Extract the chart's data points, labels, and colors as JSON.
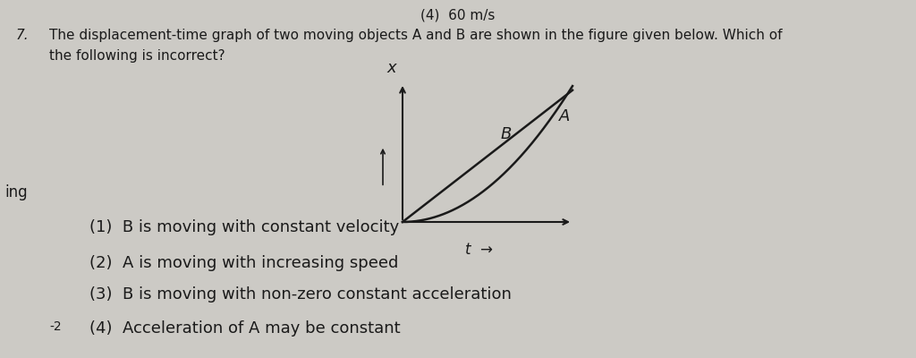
{
  "bg_color": "#cccac5",
  "question_text_line1": "The displacement-time graph of two moving objects A and B are shown in the figure given below. Which of",
  "question_text_line2": "the following is incorrect?",
  "question_number": "7.",
  "prev_answer": "(4)  60 m/s",
  "options_clean": [
    "(1)  B is moving with constant velocity",
    "(2)  A is moving with increasing speed",
    "(3)  B is moving with non-zero constant acceleration",
    "(4)  Acceleration of A may be constant"
  ],
  "side_text": "ing",
  "prefix_last": "-2",
  "graph": {
    "xlabel": "t",
    "ylabel": "x",
    "label_A": "A",
    "label_B": "B"
  }
}
